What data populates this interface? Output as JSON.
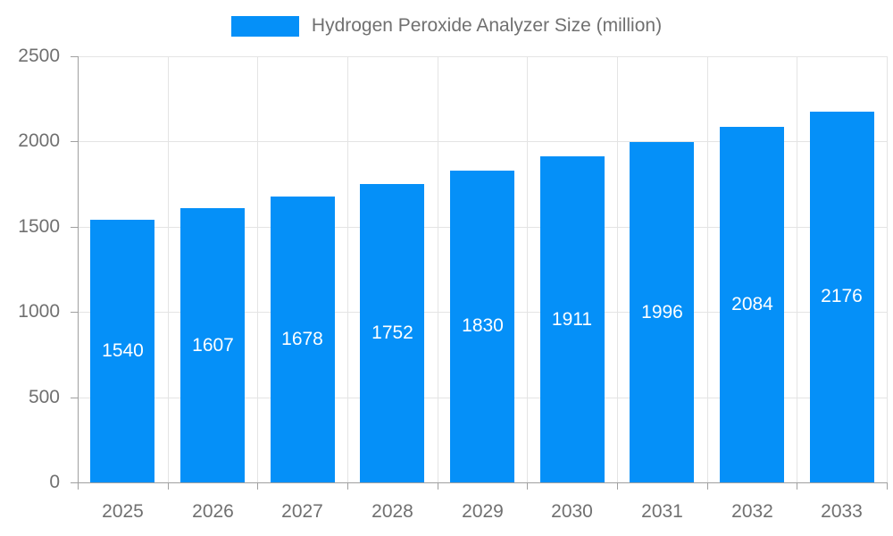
{
  "legend": {
    "label": "Hydrogen Peroxide Analyzer Size (million)"
  },
  "colors": {
    "bar": "#0590f8",
    "grid": "#e4e4e4",
    "axis": "#a0a0a0",
    "tick_text": "#707070",
    "bar_label_text": "#ffffff",
    "background": "#ffffff"
  },
  "chart_data": {
    "type": "bar",
    "title": "Hydrogen Peroxide Analyzer Size (million)",
    "series_name": "Hydrogen Peroxide Analyzer Size (million)",
    "categories": [
      "2025",
      "2026",
      "2027",
      "2028",
      "2029",
      "2030",
      "2031",
      "2032",
      "2033"
    ],
    "values": [
      1540,
      1607,
      1678,
      1752,
      1830,
      1911,
      1996,
      2084,
      2176
    ],
    "xlabel": "",
    "ylabel": "",
    "ylim": [
      0,
      2500
    ],
    "yticks": [
      0,
      500,
      1000,
      1500,
      2000,
      2500
    ],
    "grid": true,
    "legend_position": "top",
    "bar_labels_inside": true
  }
}
